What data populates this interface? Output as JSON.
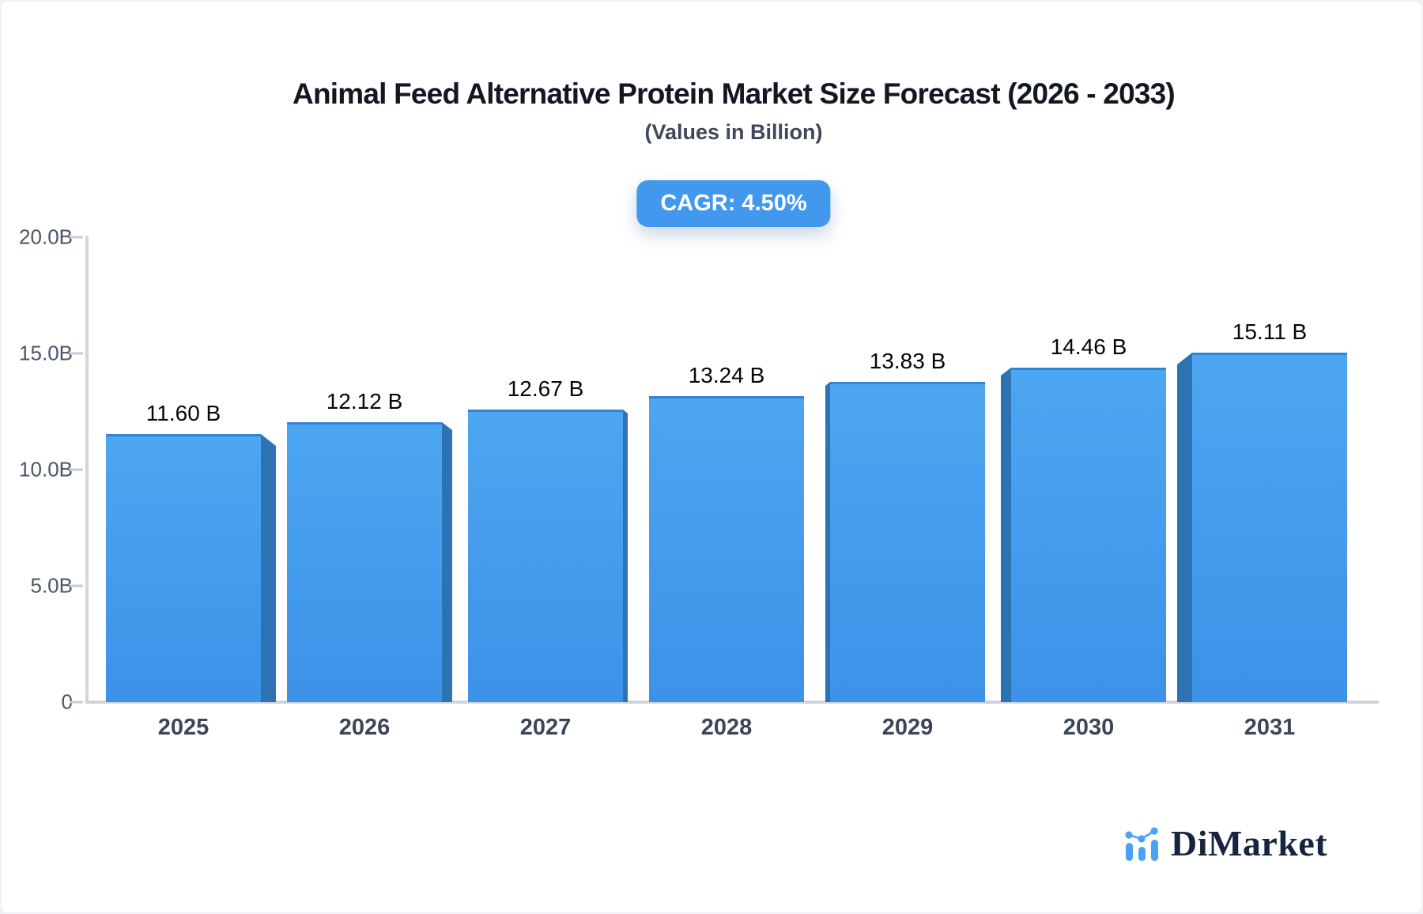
{
  "title": "Animal Feed Alternative Protein Market Size Forecast (2026 - 2033)",
  "subtitle": "(Values in Billion)",
  "badge": {
    "label": "CAGR: 4.50%"
  },
  "chart_data": {
    "type": "bar",
    "categories": [
      "2025",
      "2026",
      "2027",
      "2028",
      "2029",
      "2030",
      "2031"
    ],
    "values": [
      11.6,
      12.12,
      12.67,
      13.24,
      13.83,
      14.46,
      15.11
    ],
    "value_labels": [
      "11.60 B",
      "12.12 B",
      "12.67 B",
      "13.24 B",
      "13.83 B",
      "14.46 B",
      "15.11 B"
    ],
    "title": "Animal Feed Alternative Protein Market Size Forecast (2026 - 2033)",
    "xlabel": "",
    "ylabel": "",
    "ylim": [
      0,
      20
    ],
    "yticks": [
      {
        "value": 20,
        "label": "20.0B"
      },
      {
        "value": 15,
        "label": "15.0B"
      },
      {
        "value": 10,
        "label": "10.0B"
      },
      {
        "value": 5,
        "label": "5.0B"
      },
      {
        "value": 0,
        "label": "0"
      }
    ],
    "grid": false,
    "legend": null,
    "style": "3d-perspective-bars"
  },
  "colors": {
    "bar_face": "#3E97EA",
    "bar_side": "#2D73B4",
    "badge_bg": "#4298EC",
    "axis_line": "#D0D4DA",
    "logo_navy": "#16243F",
    "logo_blue": "#4BA1F4"
  },
  "logo": {
    "text": "DiMarket",
    "icon": "bar-line-chart-logo-icon"
  }
}
